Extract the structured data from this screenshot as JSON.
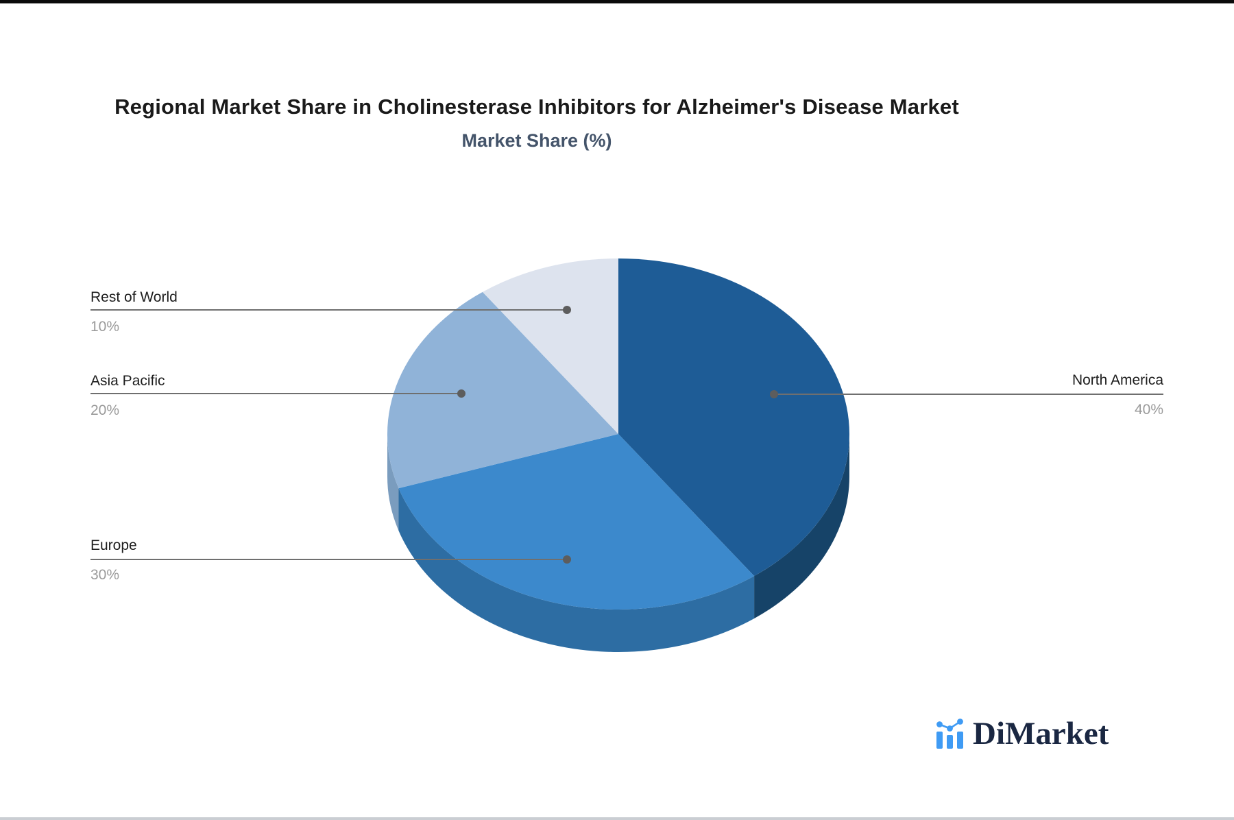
{
  "title": "Regional Market Share in Cholinesterase Inhibitors for Alzheimer's Disease Market",
  "subtitle": "Market Share (%)",
  "logo": {
    "text": "DiMarket",
    "icon": "bar-line-chart-icon",
    "accent_color": "#3f9bf4",
    "text_color": "#1a2742"
  },
  "chart_data": {
    "type": "pie",
    "style": "3d",
    "title": "Regional Market Share in Cholinesterase Inhibitors for Alzheimer's Disease Market",
    "subtitle": "Market Share (%)",
    "unit": "%",
    "start_angle_deg": 0,
    "direction": "clockwise",
    "legend_position": "none",
    "labeling": "leader-line callouts with slice name and percent",
    "leader_line_color": "#6f6f6f",
    "leader_dot_color": "#5d5d5d",
    "slices": [
      {
        "label": "North America",
        "value": 40,
        "value_text": "40%",
        "color": "#1e5c96",
        "side_color": "#164368"
      },
      {
        "label": "Europe",
        "value": 30,
        "value_text": "30%",
        "color": "#3c89cc",
        "side_color": "#2d6da3"
      },
      {
        "label": "Asia Pacific",
        "value": 20,
        "value_text": "20%",
        "color": "#90b3d8",
        "side_color": "#7a9cbe"
      },
      {
        "label": "Rest of World",
        "value": 10,
        "value_text": "10%",
        "color": "#dde3ee",
        "side_color": "#c3cedd"
      }
    ]
  }
}
